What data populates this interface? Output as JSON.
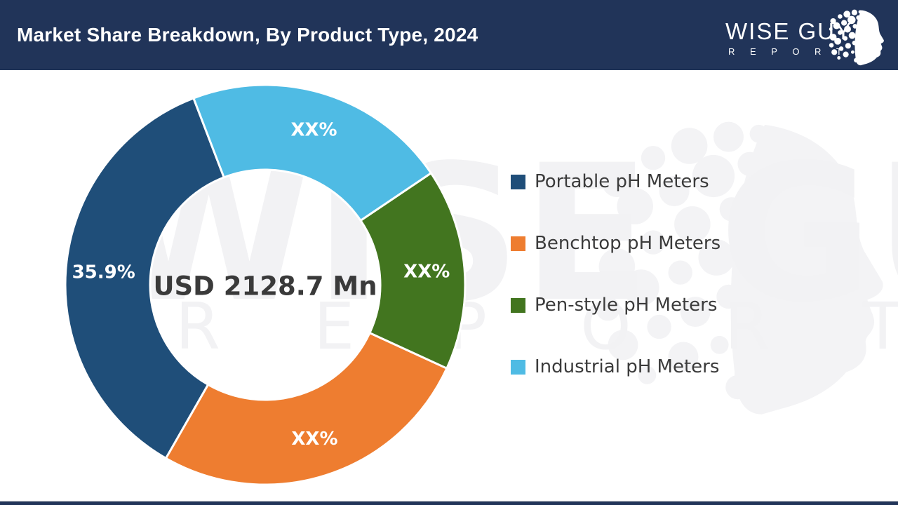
{
  "header": {
    "title": "Market Share Breakdown, By Product Type, 2024",
    "bg_color": "#213459",
    "logo": {
      "line1": "WISE GUY",
      "line2": "R E P O R T S"
    }
  },
  "watermark": {
    "line1": "WISE GUY",
    "line2": "R E P O R T S"
  },
  "chart_data": {
    "type": "pie",
    "subtype": "donut",
    "title": "Market Share Breakdown, By Product Type, 2024",
    "center_label": "USD 2128.7 Mn",
    "start_angle_deg": 111,
    "direction": "counterclockwise",
    "outer_radius_px": 285,
    "inner_radius_px": 164,
    "legend_position": "right",
    "segments": [
      {
        "label": "Portable pH Meters",
        "value": 35.9,
        "display": "35.9%",
        "color": "#1f4e79"
      },
      {
        "label": "Benchtop pH Meters",
        "value": 26.4,
        "display": "XX%",
        "color": "#ee7d30"
      },
      {
        "label": "Pen-style pH Meters",
        "value": 16.3,
        "display": "XX%",
        "color": "#42751f"
      },
      {
        "label": "Industrial pH Meters",
        "value": 21.4,
        "display": "XX%",
        "color": "#4fbbe4"
      }
    ]
  },
  "colors": {
    "header_bg": "#213459",
    "footer_bar": "#213459",
    "watermark": "#f2f2f4",
    "center_text": "#3a3a3a",
    "legend_text": "#3b3b3b",
    "segment_gap": "#ffffff"
  }
}
